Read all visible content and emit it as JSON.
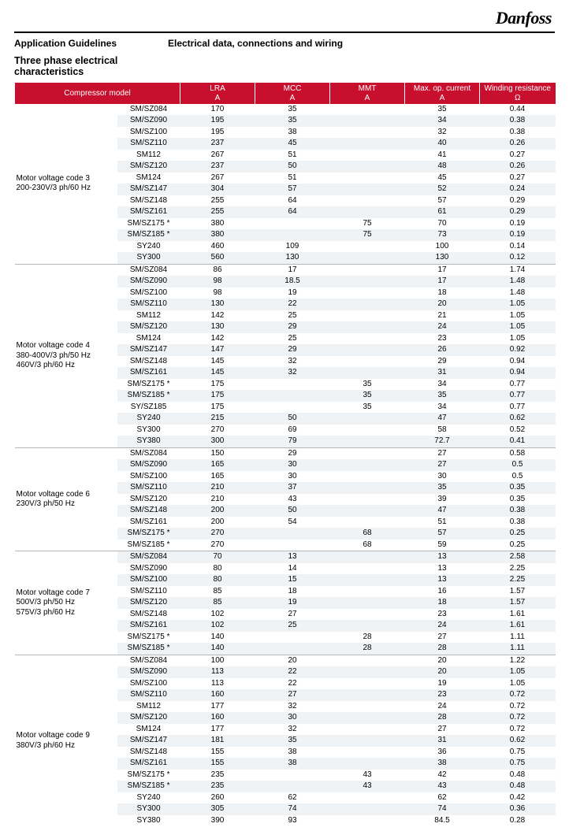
{
  "brand": "Danfoss",
  "header": {
    "left": "Application Guidelines",
    "right": "Electrical data, connections and wiring"
  },
  "subtitle": "Three phase electrical\ncharacteristics",
  "columns": {
    "group_header": "Compressor model",
    "lra": "LRA",
    "mcc": "MCC",
    "mmt": "MMT",
    "max": "Max. op. current",
    "wind": "Winding resistance",
    "unit_a": "A",
    "unit_ohm": "Ω"
  },
  "colors": {
    "header_bg": "#c8102e",
    "header_fg": "#ffffff",
    "stripe": "#f0f3f6",
    "sep": "#b6b6b6"
  },
  "groups": [
    {
      "label": "Motor voltage code 3\n200-230V/3 ph/60 Hz",
      "rows": [
        {
          "m": "SM/SZ084",
          "lra": "170",
          "mcc": "35",
          "mmt": "",
          "max": "35",
          "w": "0.44"
        },
        {
          "m": "SM/SZ090",
          "lra": "195",
          "mcc": "35",
          "mmt": "",
          "max": "34",
          "w": "0.38"
        },
        {
          "m": "SM/SZ100",
          "lra": "195",
          "mcc": "38",
          "mmt": "",
          "max": "32",
          "w": "0.38"
        },
        {
          "m": "SM/SZ110",
          "lra": "237",
          "mcc": "45",
          "mmt": "",
          "max": "40",
          "w": "0.26"
        },
        {
          "m": "SM112",
          "lra": "267",
          "mcc": "51",
          "mmt": "",
          "max": "41",
          "w": "0.27"
        },
        {
          "m": "SM/SZ120",
          "lra": "237",
          "mcc": "50",
          "mmt": "",
          "max": "48",
          "w": "0.26"
        },
        {
          "m": "SM124",
          "lra": "267",
          "mcc": "51",
          "mmt": "",
          "max": "45",
          "w": "0.27"
        },
        {
          "m": "SM/SZ147",
          "lra": "304",
          "mcc": "57",
          "mmt": "",
          "max": "52",
          "w": "0.24"
        },
        {
          "m": "SM/SZ148",
          "lra": "255",
          "mcc": "64",
          "mmt": "",
          "max": "57",
          "w": "0.29"
        },
        {
          "m": "SM/SZ161",
          "lra": "255",
          "mcc": "64",
          "mmt": "",
          "max": "61",
          "w": "0.29"
        },
        {
          "m": "SM/SZ175 *",
          "lra": "380",
          "mcc": "",
          "mmt": "75",
          "max": "70",
          "w": "0.19"
        },
        {
          "m": "SM/SZ185 *",
          "lra": "380",
          "mcc": "",
          "mmt": "75",
          "max": "73",
          "w": "0.19"
        },
        {
          "m": "SY240",
          "lra": "460",
          "mcc": "109",
          "mmt": "",
          "max": "100",
          "w": "0.14"
        },
        {
          "m": "SY300",
          "lra": "560",
          "mcc": "130",
          "mmt": "",
          "max": "130",
          "w": "0.12"
        }
      ]
    },
    {
      "label": "Motor voltage code 4\n380-400V/3 ph/50 Hz\n460V/3 ph/60 Hz",
      "rows": [
        {
          "m": "SM/SZ084",
          "lra": "86",
          "mcc": "17",
          "mmt": "",
          "max": "17",
          "w": "1.74"
        },
        {
          "m": "SM/SZ090",
          "lra": "98",
          "mcc": "18.5",
          "mmt": "",
          "max": "17",
          "w": "1.48"
        },
        {
          "m": "SM/SZ100",
          "lra": "98",
          "mcc": "19",
          "mmt": "",
          "max": "18",
          "w": "1.48"
        },
        {
          "m": "SM/SZ110",
          "lra": "130",
          "mcc": "22",
          "mmt": "",
          "max": "20",
          "w": "1.05"
        },
        {
          "m": "SM112",
          "lra": "142",
          "mcc": "25",
          "mmt": "",
          "max": "21",
          "w": "1.05"
        },
        {
          "m": "SM/SZ120",
          "lra": "130",
          "mcc": "29",
          "mmt": "",
          "max": "24",
          "w": "1.05"
        },
        {
          "m": "SM124",
          "lra": "142",
          "mcc": "25",
          "mmt": "",
          "max": "23",
          "w": "1.05"
        },
        {
          "m": "SM/SZ147",
          "lra": "147",
          "mcc": "29",
          "mmt": "",
          "max": "26",
          "w": "0.92"
        },
        {
          "m": "SM/SZ148",
          "lra": "145",
          "mcc": "32",
          "mmt": "",
          "max": "29",
          "w": "0.94"
        },
        {
          "m": "SM/SZ161",
          "lra": "145",
          "mcc": "32",
          "mmt": "",
          "max": "31",
          "w": "0.94"
        },
        {
          "m": "SM/SZ175 *",
          "lra": "175",
          "mcc": "",
          "mmt": "35",
          "max": "34",
          "w": "0.77"
        },
        {
          "m": "SM/SZ185 *",
          "lra": "175",
          "mcc": "",
          "mmt": "35",
          "max": "35",
          "w": "0.77"
        },
        {
          "m": "SY/SZ185",
          "lra": "175",
          "mcc": "",
          "mmt": "35",
          "max": "34",
          "w": "0.77"
        },
        {
          "m": "SY240",
          "lra": "215",
          "mcc": "50",
          "mmt": "",
          "max": "47",
          "w": "0.62"
        },
        {
          "m": "SY300",
          "lra": "270",
          "mcc": "69",
          "mmt": "",
          "max": "58",
          "w": "0.52"
        },
        {
          "m": "SY380",
          "lra": "300",
          "mcc": "79",
          "mmt": "",
          "max": "72.7",
          "w": "0.41"
        }
      ]
    },
    {
      "label": "Motor voltage code 6\n230V/3 ph/50 Hz",
      "rows": [
        {
          "m": "SM/SZ084",
          "lra": "150",
          "mcc": "29",
          "mmt": "",
          "max": "27",
          "w": "0.58"
        },
        {
          "m": "SM/SZ090",
          "lra": "165",
          "mcc": "30",
          "mmt": "",
          "max": "27",
          "w": "0.5"
        },
        {
          "m": "SM/SZ100",
          "lra": "165",
          "mcc": "30",
          "mmt": "",
          "max": "30",
          "w": "0.5"
        },
        {
          "m": "SM/SZ110",
          "lra": "210",
          "mcc": "37",
          "mmt": "",
          "max": "35",
          "w": "0.35"
        },
        {
          "m": "SM/SZ120",
          "lra": "210",
          "mcc": "43",
          "mmt": "",
          "max": "39",
          "w": "0.35"
        },
        {
          "m": "SM/SZ148",
          "lra": "200",
          "mcc": "50",
          "mmt": "",
          "max": "47",
          "w": "0.38"
        },
        {
          "m": "SM/SZ161",
          "lra": "200",
          "mcc": "54",
          "mmt": "",
          "max": "51",
          "w": "0.38"
        },
        {
          "m": "SM/SZ175 *",
          "lra": "270",
          "mcc": "",
          "mmt": "68",
          "max": "57",
          "w": "0.25"
        },
        {
          "m": "SM/SZ185 *",
          "lra": "270",
          "mcc": "",
          "mmt": "68",
          "max": "59",
          "w": "0.25"
        }
      ]
    },
    {
      "label": "Motor voltage code 7\n500V/3 ph/50 Hz\n575V/3 ph/60 Hz",
      "rows": [
        {
          "m": "SM/SZ084",
          "lra": "70",
          "mcc": "13",
          "mmt": "",
          "max": "13",
          "w": "2.58"
        },
        {
          "m": "SM/SZ090",
          "lra": "80",
          "mcc": "14",
          "mmt": "",
          "max": "13",
          "w": "2.25"
        },
        {
          "m": "SM/SZ100",
          "lra": "80",
          "mcc": "15",
          "mmt": "",
          "max": "13",
          "w": "2.25"
        },
        {
          "m": "SM/SZ110",
          "lra": "85",
          "mcc": "18",
          "mmt": "",
          "max": "16",
          "w": "1.57"
        },
        {
          "m": "SM/SZ120",
          "lra": "85",
          "mcc": "19",
          "mmt": "",
          "max": "18",
          "w": "1.57"
        },
        {
          "m": "SM/SZ148",
          "lra": "102",
          "mcc": "27",
          "mmt": "",
          "max": "23",
          "w": "1.61"
        },
        {
          "m": "SM/SZ161",
          "lra": "102",
          "mcc": "25",
          "mmt": "",
          "max": "24",
          "w": "1.61"
        },
        {
          "m": "SM/SZ175 *",
          "lra": "140",
          "mcc": "",
          "mmt": "28",
          "max": "27",
          "w": "1.11"
        },
        {
          "m": "SM/SZ185 *",
          "lra": "140",
          "mcc": "",
          "mmt": "28",
          "max": "28",
          "w": "1.11"
        }
      ]
    },
    {
      "label": "Motor voltage code 9\n380V/3 ph/60 Hz",
      "rows": [
        {
          "m": "SM/SZ084",
          "lra": "100",
          "mcc": "20",
          "mmt": "",
          "max": "20",
          "w": "1.22"
        },
        {
          "m": "SM/SZ090",
          "lra": "113",
          "mcc": "22",
          "mmt": "",
          "max": "20",
          "w": "1.05"
        },
        {
          "m": "SM/SZ100",
          "lra": "113",
          "mcc": "22",
          "mmt": "",
          "max": "19",
          "w": "1.05"
        },
        {
          "m": "SM/SZ110",
          "lra": "160",
          "mcc": "27",
          "mmt": "",
          "max": "23",
          "w": "0.72"
        },
        {
          "m": "SM112",
          "lra": "177",
          "mcc": "32",
          "mmt": "",
          "max": "24",
          "w": "0.72"
        },
        {
          "m": "SM/SZ120",
          "lra": "160",
          "mcc": "30",
          "mmt": "",
          "max": "28",
          "w": "0.72"
        },
        {
          "m": "SM124",
          "lra": "177",
          "mcc": "32",
          "mmt": "",
          "max": "27",
          "w": "0.72"
        },
        {
          "m": "SM/SZ147",
          "lra": "181",
          "mcc": "35",
          "mmt": "",
          "max": "31",
          "w": "0.62"
        },
        {
          "m": "SM/SZ148",
          "lra": "155",
          "mcc": "38",
          "mmt": "",
          "max": "36",
          "w": "0.75"
        },
        {
          "m": "SM/SZ161",
          "lra": "155",
          "mcc": "38",
          "mmt": "",
          "max": "38",
          "w": "0.75"
        },
        {
          "m": "SM/SZ175 *",
          "lra": "235",
          "mcc": "",
          "mmt": "43",
          "max": "42",
          "w": "0.48"
        },
        {
          "m": "SM/SZ185 *",
          "lra": "235",
          "mcc": "",
          "mmt": "43",
          "max": "43",
          "w": "0.48"
        },
        {
          "m": "SY240",
          "lra": "260",
          "mcc": "62",
          "mmt": "",
          "max": "62",
          "w": "0.42"
        },
        {
          "m": "SY300",
          "lra": "305",
          "mcc": "74",
          "mmt": "",
          "max": "74",
          "w": "0.36"
        },
        {
          "m": "SY380",
          "lra": "390",
          "mcc": "93",
          "mmt": "",
          "max": "84.5",
          "w": "0.28"
        }
      ]
    }
  ]
}
